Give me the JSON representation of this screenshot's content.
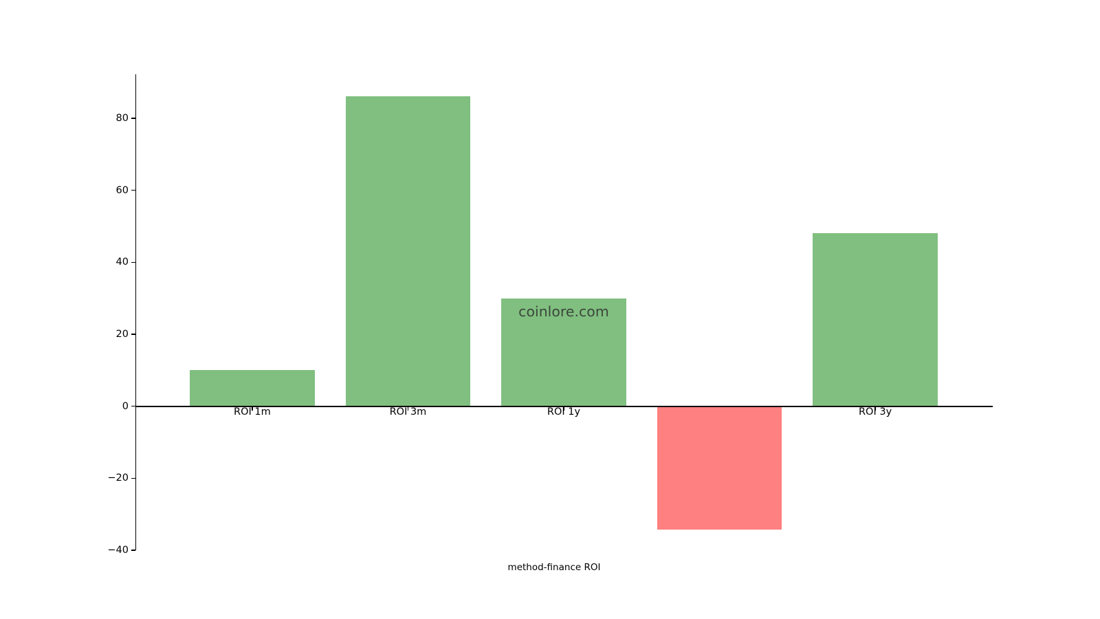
{
  "watermark": {
    "text": "coinlore.com",
    "color": "#3c463c"
  },
  "chart_data": {
    "type": "bar",
    "title": "",
    "xlabel": "method-finance ROI",
    "ylabel": "",
    "categories": [
      "ROI 1m",
      "ROI 3m",
      "ROI 1y",
      "",
      "ROI 3y"
    ],
    "values": [
      10,
      86,
      30,
      -34,
      48
    ],
    "colors": [
      "#80bf80",
      "#80bf80",
      "#80bf80",
      "#ff8080",
      "#80bf80"
    ],
    "positive_color": "#80bf80",
    "negative_color": "#ff8080",
    "bar_width_fraction": 0.8,
    "yticks": [
      {
        "value": 80,
        "label": "80"
      },
      {
        "value": 60,
        "label": "60"
      },
      {
        "value": 40,
        "label": "40"
      },
      {
        "value": 20,
        "label": "20"
      },
      {
        "value": 0,
        "label": "0"
      },
      {
        "value": -20,
        "label": "−20"
      },
      {
        "value": -40,
        "label": "−40"
      }
    ],
    "ylim": [
      -40,
      92.2
    ],
    "grid": false,
    "legend": null,
    "annotations": [
      "coinlore.com watermark centered in plot",
      "fourth bar x tick label hidden behind negative bar"
    ]
  }
}
